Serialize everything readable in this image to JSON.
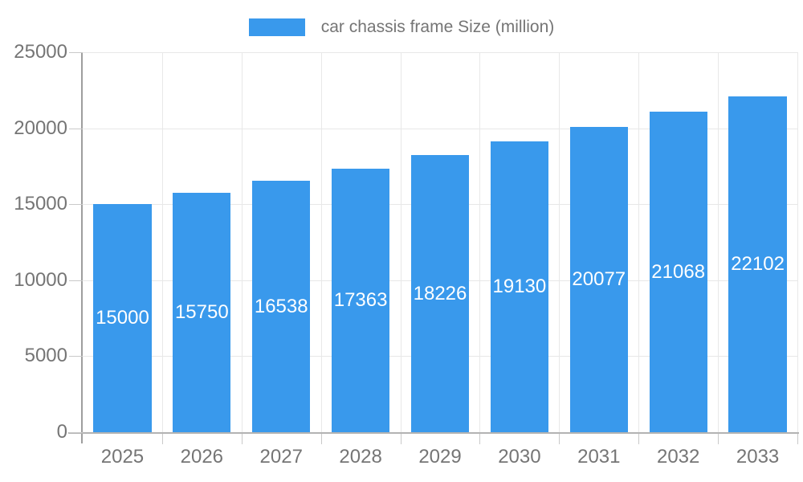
{
  "legend": {
    "label": "car chassis frame Size (million)"
  },
  "colors": {
    "bar": "#3999EC",
    "bar_label": "#FFFFFF",
    "axis_text": "#757575",
    "grid_line": "#E8E8E8",
    "x_axis_line": "#B3B3B3",
    "y_axis_line": "#9E9E9E",
    "tick": "#C9C9C9",
    "background": "#FFFFFF"
  },
  "chart_data": {
    "type": "bar",
    "title": "car chassis frame Size (million)",
    "categories": [
      "2025",
      "2026",
      "2027",
      "2028",
      "2029",
      "2030",
      "2031",
      "2032",
      "2033"
    ],
    "values": [
      15000,
      15750,
      16538,
      17363,
      18226,
      19130,
      20077,
      21068,
      22102
    ],
    "xlabel": "",
    "ylabel": "",
    "ylim": [
      0,
      25000
    ],
    "yticks": [
      0,
      5000,
      10000,
      15000,
      20000,
      25000
    ],
    "grid": true,
    "legend_position": "top",
    "bar_label_position": "inside-center",
    "bar_width_fraction": 0.73
  }
}
